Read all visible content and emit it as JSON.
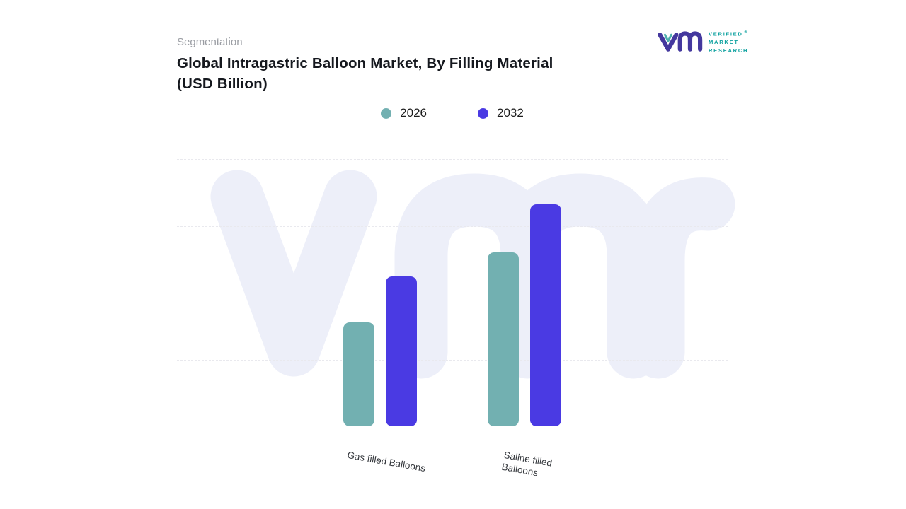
{
  "header": {
    "eyebrow": "Segmentation",
    "title_line1": "Global Intragastric Balloon Market, By Filling Material",
    "title_line2": "(USD Billion)"
  },
  "logo": {
    "lines": [
      "VERIFIED",
      "MARKET",
      "RESEARCH"
    ],
    "registered_mark": "®",
    "mark_color": "#44389e",
    "accent_color": "#4fb0ad",
    "text_color": "#0fa2a0"
  },
  "legend": {
    "items": [
      {
        "label": "2026",
        "color": "#72b0b1"
      },
      {
        "label": "2032",
        "color": "#4a3ae3"
      }
    ]
  },
  "chart_data": {
    "type": "bar",
    "title": "Global Intragastric Balloon Market, By Filling Material (USD Billion)",
    "categories": [
      "Gas filled Balloons",
      "Saline filled Balloons"
    ],
    "category_label_lines": [
      [
        "Gas filled Balloons"
      ],
      [
        "Saline filled",
        "Balloons"
      ]
    ],
    "series": [
      {
        "name": "2026",
        "color": "#72b0b1",
        "values": [
          39,
          65
        ]
      },
      {
        "name": "2032",
        "color": "#4a3ae3",
        "values": [
          56,
          83
        ]
      }
    ],
    "ylim": [
      0,
      100
    ],
    "yaxis_labels_visible": false,
    "value_labels_visible": false,
    "gridlines": "dashed horizontal",
    "legend_position": "top-center",
    "watermark_text": "vmr",
    "watermark_color": "#edeff9",
    "note": "No numeric axis or data labels are shown in the figure; values are estimated as percent of plot height."
  }
}
